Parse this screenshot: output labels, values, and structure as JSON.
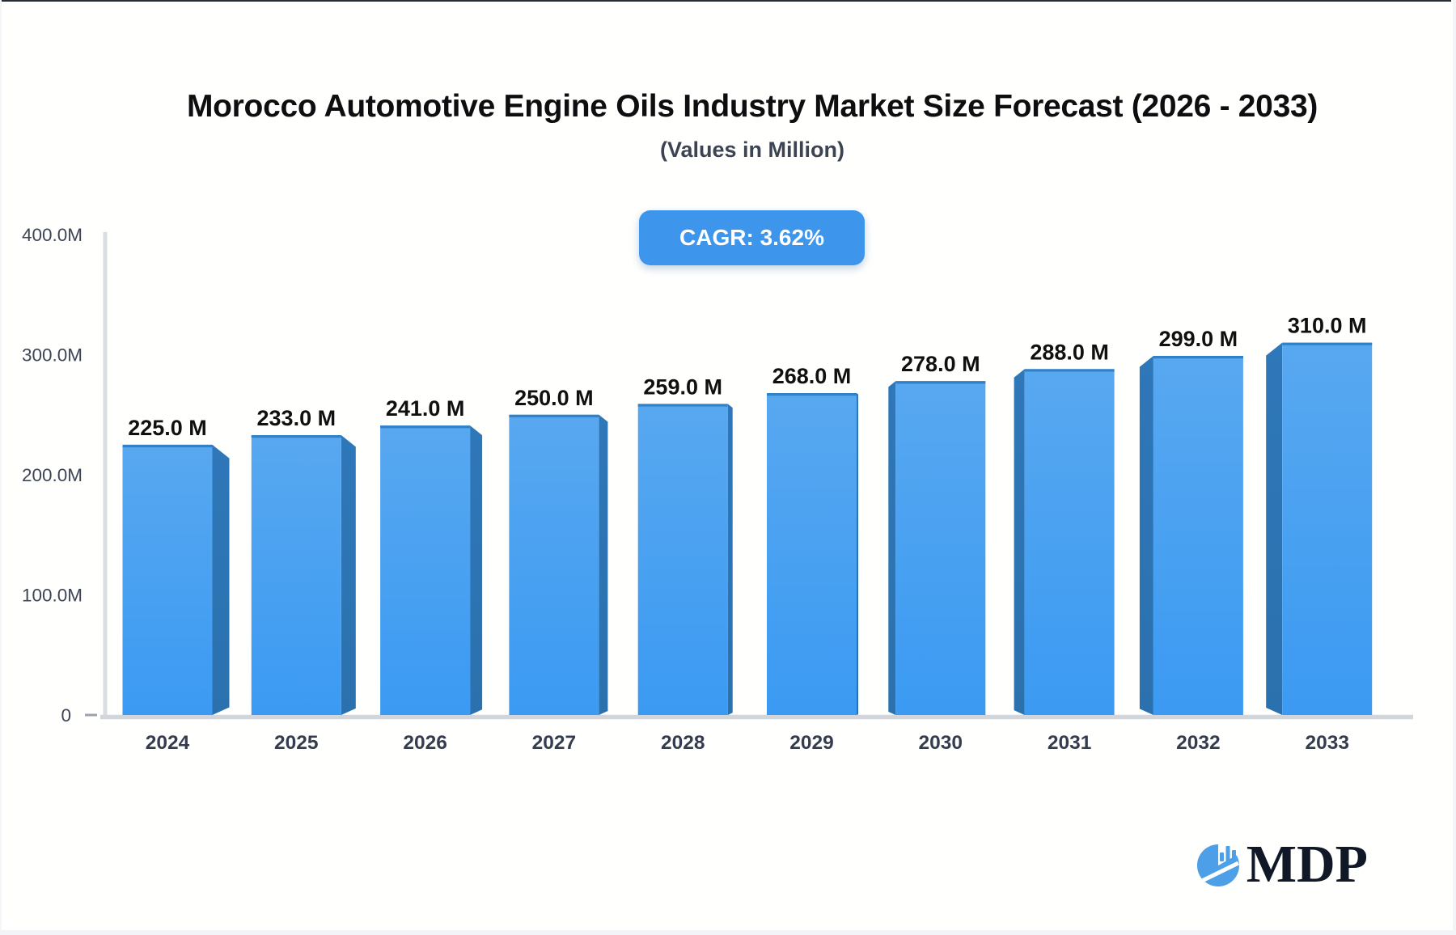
{
  "chart_data": {
    "type": "bar",
    "title": "Morocco Automotive Engine Oils Industry Market Size Forecast (2026 - 2033)",
    "subtitle": "(Values in Million)",
    "badge": "CAGR: 3.62%",
    "unit": "Million",
    "categories": [
      "2024",
      "2025",
      "2026",
      "2027",
      "2028",
      "2029",
      "2030",
      "2031",
      "2032",
      "2033"
    ],
    "values": [
      225,
      233,
      241,
      250,
      259,
      268,
      278,
      288,
      299,
      310
    ],
    "value_labels": [
      "225.0 M",
      "233.0 M",
      "241.0 M",
      "250.0 M",
      "259.0 M",
      "268.0 M",
      "278.0 M",
      "288.0 M",
      "299.0 M",
      "310.0 M"
    ],
    "ylim": [
      0,
      400
    ],
    "yticks": [
      {
        "value": 400,
        "label": "400.0M"
      },
      {
        "value": 300,
        "label": "300.0M"
      },
      {
        "value": 200,
        "label": "200.0M"
      },
      {
        "value": 100,
        "label": "100.0M"
      },
      {
        "value": 0,
        "label": "0"
      }
    ],
    "grid": false,
    "legend": false,
    "style": "3d-perspective-bars"
  },
  "colors": {
    "bar_top": "#58a8f0",
    "bar_bottom": "#3b9af2",
    "bar_side_top": "#2e77b8",
    "bar_side_bottom": "#2b71ae",
    "bar_edge": "#3181c8",
    "badge_bg": "#3e96ec",
    "badge_text": "#ffffff",
    "axis_line": "#d9dce1",
    "baseline": "#d2d5da",
    "zero_tick": "#9aa2ad",
    "tick_text": "#3e4656",
    "title": "#0e0e10",
    "subtitle": "#3c4454",
    "value_label": "#101010",
    "category_label": "#333d4f",
    "logo_blue": "#4d9fe8",
    "logo_text": "#101828"
  },
  "logo": {
    "text": "MDP"
  }
}
